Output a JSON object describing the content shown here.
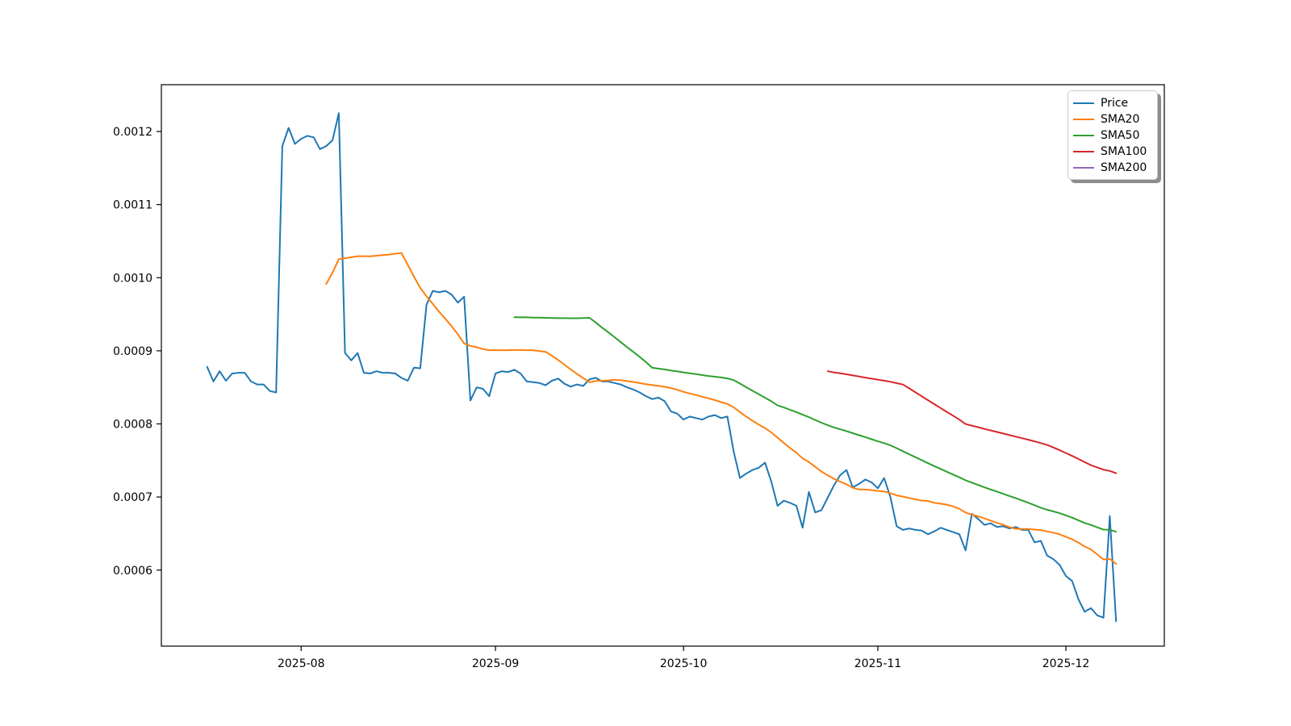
{
  "figure": {
    "background": "#ffffff",
    "title": ""
  },
  "chart_data": {
    "type": "line",
    "title": "",
    "xlabel": "",
    "ylabel": "",
    "grid": false,
    "legend_position": "upper right",
    "x_start_date": "2025-07-17",
    "x_end_date": "2025-12-09",
    "x_freq": "daily",
    "xlim_days_from_start": [
      -7.3,
      152.7
    ],
    "ylim": [
      0.000496,
      0.001264
    ],
    "x_ticks": [
      "2025-08",
      "2025-09",
      "2025-10",
      "2025-11",
      "2025-12"
    ],
    "y_ticks": [
      "0.0006",
      "0.0007",
      "0.0008",
      "0.0009",
      "0.0010",
      "0.0011",
      "0.0012"
    ],
    "series": [
      {
        "name": "Price",
        "color": "#1f77b4",
        "kind": "price"
      },
      {
        "name": "SMA20",
        "color": "#ff7f0e",
        "kind": "sma",
        "window": 20
      },
      {
        "name": "SMA50",
        "color": "#2ca02c",
        "kind": "sma",
        "window": 50
      },
      {
        "name": "SMA100",
        "color": "#d62728",
        "kind": "sma",
        "window": 100
      },
      {
        "name": "SMA200",
        "color": "#9467bd",
        "kind": "sma",
        "window": 200
      }
    ],
    "price_values": [
      0.000878,
      0.000858,
      0.000872,
      0.000859,
      0.000869,
      0.00087,
      0.00087,
      0.000858,
      0.000854,
      0.000854,
      0.000845,
      0.000843,
      0.00118,
      0.001205,
      0.001183,
      0.00119,
      0.001194,
      0.001192,
      0.001176,
      0.00118,
      0.001188,
      0.001225,
      0.000897,
      0.000887,
      0.000897,
      0.00087,
      0.000869,
      0.000872,
      0.00087,
      0.00087,
      0.000869,
      0.000863,
      0.000859,
      0.000877,
      0.000876,
      0.000963,
      0.000982,
      0.00098,
      0.000982,
      0.000977,
      0.000966,
      0.000974,
      0.000832,
      0.00085,
      0.000848,
      0.000838,
      0.000869,
      0.000872,
      0.000871,
      0.000874,
      0.000869,
      0.000858,
      0.000857,
      0.000856,
      0.000853,
      0.000859,
      0.000862,
      0.000855,
      0.000851,
      0.000854,
      0.000852,
      0.000861,
      0.000863,
      0.000858,
      0.000858,
      0.000856,
      0.000854,
      0.00085,
      0.000847,
      0.000843,
      0.000838,
      0.000834,
      0.000836,
      0.000831,
      0.000817,
      0.000814,
      0.000806,
      0.00081,
      0.000808,
      0.000806,
      0.00081,
      0.000812,
      0.000808,
      0.00081,
      0.000762,
      0.000726,
      0.000732,
      0.000737,
      0.00074,
      0.000747,
      0.000721,
      0.000688,
      0.000695,
      0.000692,
      0.000688,
      0.000658,
      0.000707,
      0.000679,
      0.000682,
      0.000699,
      0.000716,
      0.00073,
      0.000737,
      0.000713,
      0.000718,
      0.000724,
      0.00072,
      0.000712,
      0.000726,
      0.0007,
      0.00066,
      0.000655,
      0.000657,
      0.000655,
      0.000654,
      0.000649,
      0.000653,
      0.000658,
      0.000655,
      0.000652,
      0.000649,
      0.000627,
      0.000677,
      0.00067,
      0.000662,
      0.000664,
      0.000659,
      0.00066,
      0.000657,
      0.000659,
      0.000655,
      0.000655,
      0.000638,
      0.00064,
      0.00062,
      0.000615,
      0.000607,
      0.000592,
      0.000585,
      0.00056,
      0.000543,
      0.000548,
      0.000538,
      0.000535,
      0.000674,
      0.00053
    ]
  }
}
